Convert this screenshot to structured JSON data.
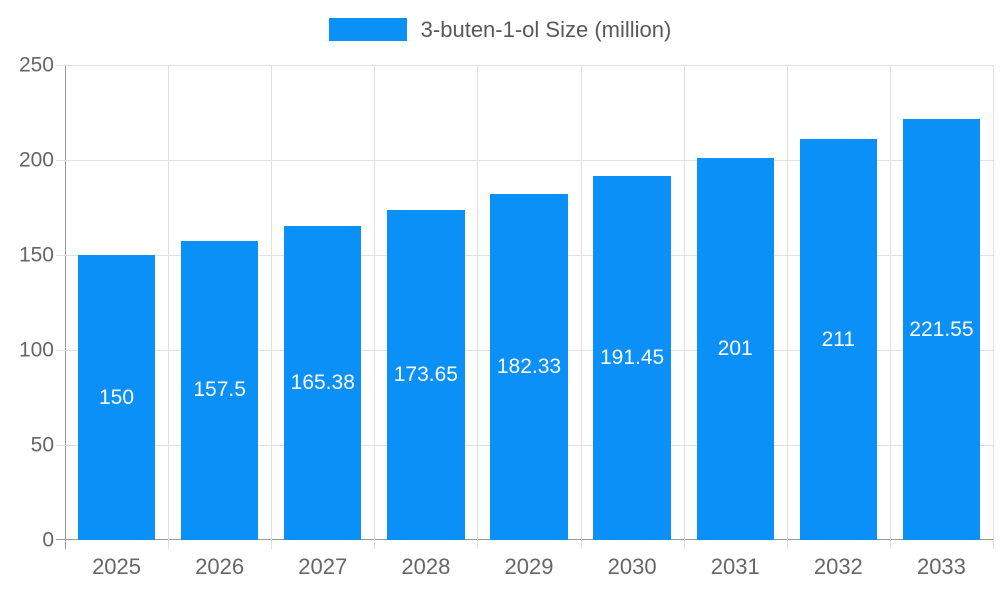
{
  "legend": {
    "label": "3-buten-1-ol Size (million)"
  },
  "colors": {
    "bar": "#0a90f7",
    "axis": "#999999",
    "grid": "#e0e0e0",
    "tick_text": "#666666",
    "bar_label_text": "#ffffff",
    "background": "#ffffff"
  },
  "chart_data": {
    "type": "bar",
    "title": "3-buten-1-ol Size (million)",
    "categories": [
      "2025",
      "2026",
      "2027",
      "2028",
      "2029",
      "2030",
      "2031",
      "2032",
      "2033"
    ],
    "values": [
      150,
      157.5,
      165.38,
      173.65,
      182.33,
      191.45,
      201,
      211,
      221.55
    ],
    "bar_labels": [
      "150",
      "157.5",
      "165.38",
      "173.65",
      "182.33",
      "191.45",
      "201",
      "211",
      "221.55"
    ],
    "xlabel": "",
    "ylabel": "",
    "ylim": [
      0,
      250
    ],
    "yticks": [
      0,
      50,
      100,
      150,
      200,
      250
    ],
    "grid": true,
    "legend_position": "top",
    "bar_width_fraction": 0.75
  }
}
